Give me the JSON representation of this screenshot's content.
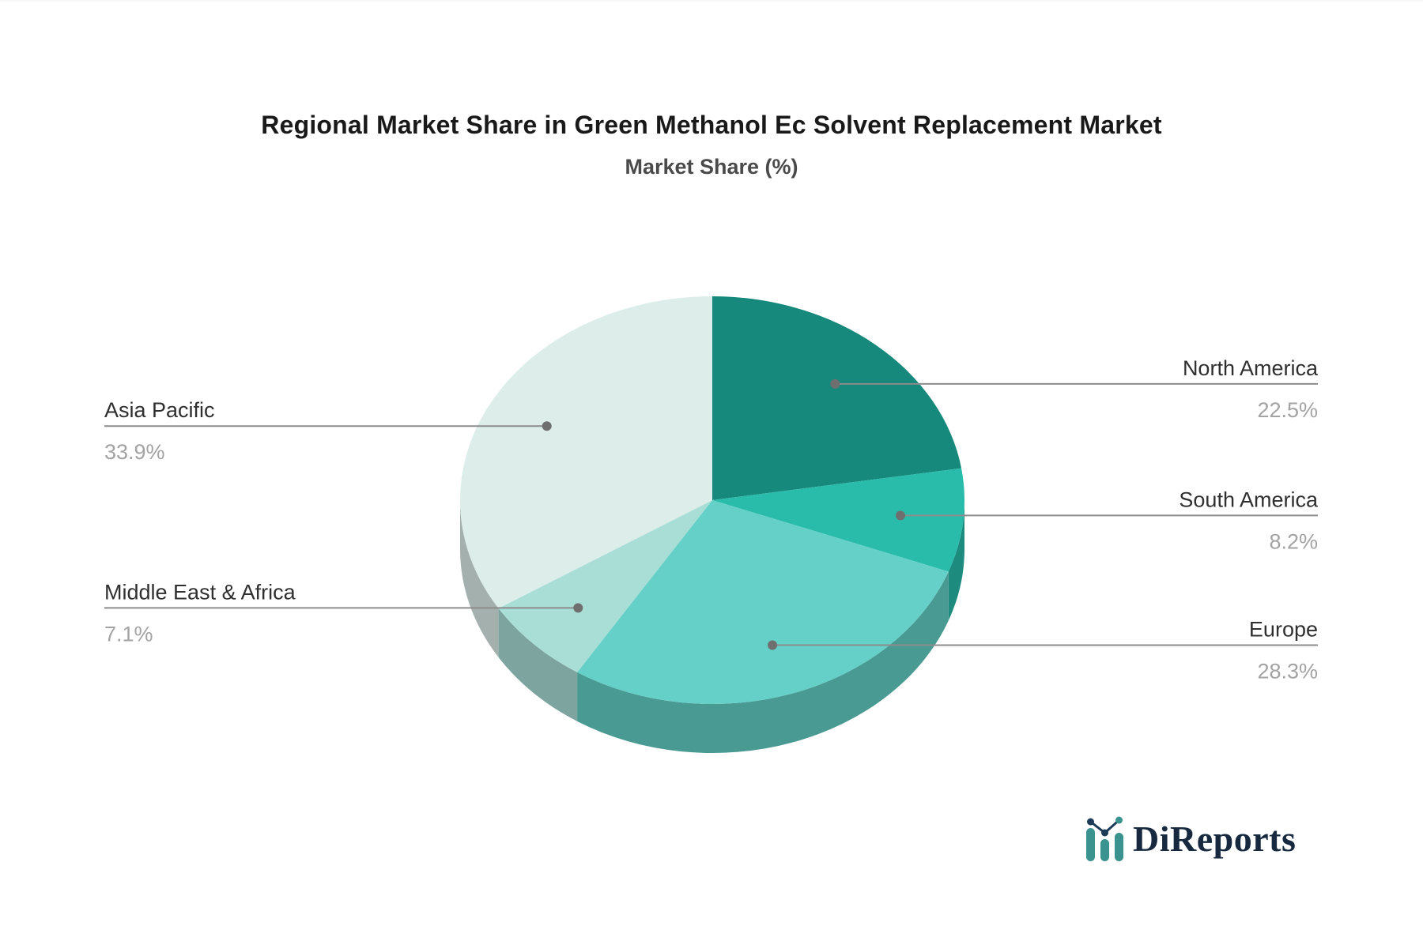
{
  "chart": {
    "title": "Regional Market Share in Green Methanol Ec Solvent Replacement Market",
    "subtitle": "Market Share (%)"
  },
  "chart_data": {
    "type": "pie",
    "style": "3d",
    "title": "Regional Market Share in Green Methanol Ec Solvent Replacement Market",
    "subtitle": "Market Share (%)",
    "unit": "%",
    "start_angle_deg": 0,
    "clockwise": true,
    "legend_position": "callout-labels",
    "categories": [
      "North America",
      "South America",
      "Europe",
      "Middle East & Africa",
      "Asia Pacific"
    ],
    "values": [
      22.5,
      8.2,
      28.3,
      7.1,
      33.9
    ],
    "slices": [
      {
        "label": "North America",
        "value": 22.5,
        "display": "22.5%",
        "color": "#17897c",
        "callout_side": "right"
      },
      {
        "label": "South America",
        "value": 8.2,
        "display": "8.2%",
        "color": "#29bcab",
        "callout_side": "right"
      },
      {
        "label": "Europe",
        "value": 28.3,
        "display": "28.3%",
        "color": "#64d0c8",
        "callout_side": "right"
      },
      {
        "label": "Middle East & Africa",
        "value": 7.1,
        "display": "7.1%",
        "color": "#a9ded7",
        "callout_side": "left"
      },
      {
        "label": "Asia Pacific",
        "value": 33.9,
        "display": "33.9%",
        "color": "#ddeeea",
        "callout_side": "left"
      }
    ],
    "colors": {
      "label_text": "#2f2f2f",
      "value_text": "#a3a3a3",
      "leader_line": "#8c8c8c",
      "leader_dot": "#6f6f6f",
      "title_text": "#191919",
      "subtitle_text": "#4a4a4a"
    }
  },
  "logo": {
    "text": "DiReports",
    "icon": "bar-line-chart-icon",
    "text_color": "#16293e",
    "bar_color": "#3a938e",
    "dot_line_color": "#1d3b57"
  }
}
